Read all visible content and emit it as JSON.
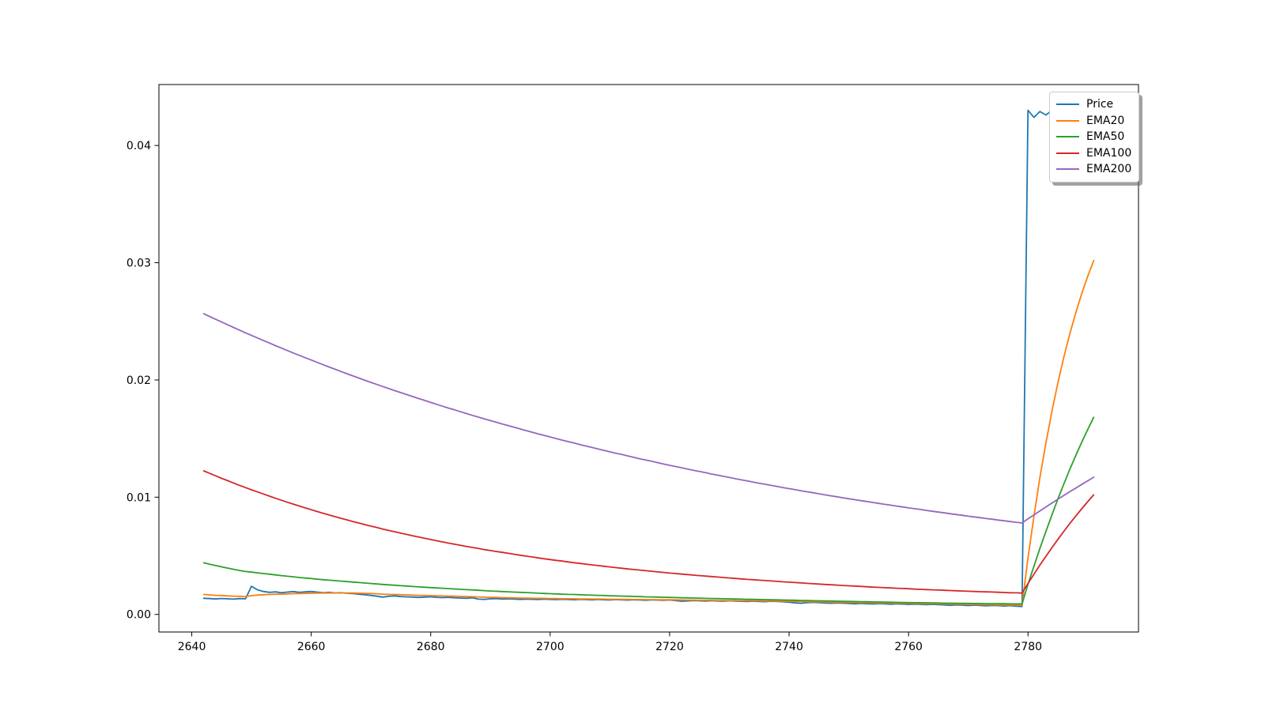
{
  "figure": {
    "background": "#ffffff",
    "plot_border_color": "#000000",
    "tick_color": "#000000"
  },
  "legend": {
    "position": "upper-right",
    "shadow": true,
    "entries": [
      "Price",
      "EMA20",
      "EMA50",
      "EMA100",
      "EMA200"
    ]
  },
  "chart_data": {
    "type": "line",
    "title": "",
    "xlabel": "",
    "ylabel": "",
    "grid": false,
    "legend_position": "upper right",
    "x_start": 2642,
    "x_step": 1,
    "xlim": [
      2634.5,
      2798.5
    ],
    "ylim": [
      -0.0015,
      0.0452
    ],
    "xticks": [
      2640,
      2660,
      2680,
      2700,
      2720,
      2740,
      2760,
      2780
    ],
    "ytick_values": [
      0.0,
      0.01,
      0.02,
      0.03,
      0.04
    ],
    "ytick_labels": [
      "0.00",
      "0.01",
      "0.02",
      "0.03",
      "0.04"
    ],
    "series": [
      {
        "name": "Price",
        "color": "#1f77b4",
        "values": [
          0.00138,
          0.00135,
          0.00132,
          0.00136,
          0.00133,
          0.0013,
          0.00135,
          0.00133,
          0.0024,
          0.0021,
          0.00196,
          0.00188,
          0.00192,
          0.00185,
          0.0019,
          0.00195,
          0.00188,
          0.00192,
          0.00196,
          0.0019,
          0.00185,
          0.00188,
          0.00182,
          0.00185,
          0.0018,
          0.00178,
          0.00172,
          0.00168,
          0.00162,
          0.00155,
          0.00148,
          0.00155,
          0.00158,
          0.00152,
          0.0015,
          0.00148,
          0.00145,
          0.00148,
          0.0015,
          0.00146,
          0.00143,
          0.00146,
          0.00142,
          0.0014,
          0.00138,
          0.00142,
          0.0013,
          0.00128,
          0.00133,
          0.00135,
          0.00131,
          0.00133,
          0.0013,
          0.00128,
          0.00131,
          0.00129,
          0.00127,
          0.0013,
          0.00128,
          0.00126,
          0.00129,
          0.00127,
          0.00125,
          0.00128,
          0.00126,
          0.00124,
          0.00127,
          0.00125,
          0.00123,
          0.00126,
          0.00124,
          0.00122,
          0.00125,
          0.00123,
          0.00121,
          0.00124,
          0.00122,
          0.0012,
          0.00123,
          0.00118,
          0.00112,
          0.00115,
          0.00118,
          0.00116,
          0.00114,
          0.00117,
          0.00115,
          0.00113,
          0.00116,
          0.00114,
          0.00112,
          0.0011,
          0.00113,
          0.00111,
          0.00109,
          0.00112,
          0.0011,
          0.00108,
          0.00105,
          0.00098,
          0.00095,
          0.001,
          0.00103,
          0.001,
          0.00097,
          0.00095,
          0.00098,
          0.00096,
          0.00093,
          0.0009,
          0.00093,
          0.00091,
          0.00089,
          0.00092,
          0.0009,
          0.00087,
          0.0009,
          0.00088,
          0.00085,
          0.00088,
          0.00086,
          0.00083,
          0.00086,
          0.00084,
          0.00081,
          0.00078,
          0.00081,
          0.00079,
          0.00076,
          0.00079,
          0.00077,
          0.00074,
          0.00077,
          0.00075,
          0.00072,
          0.00075,
          0.0007,
          0.00068,
          0.043,
          0.0424,
          0.0429,
          0.0426,
          0.043,
          0.04285,
          0.04295,
          0.0428,
          0.0429,
          0.04285,
          0.0429,
          0.04288
        ]
      },
      {
        "name": "EMA20",
        "color": "#ff7f0e",
        "values": [
          0.0017,
          0.00167,
          0.00163,
          0.00161,
          0.00158,
          0.00156,
          0.00154,
          0.00152,
          0.0016,
          0.00165,
          0.00168,
          0.0017,
          0.00172,
          0.00173,
          0.00175,
          0.00177,
          0.00178,
          0.00179,
          0.00181,
          0.00182,
          0.00182,
          0.00183,
          0.00183,
          0.00183,
          0.00183,
          0.00182,
          0.00181,
          0.0018,
          0.00178,
          0.00176,
          0.00173,
          0.00171,
          0.0017,
          0.00168,
          0.00167,
          0.00165,
          0.00163,
          0.00161,
          0.0016,
          0.00159,
          0.00157,
          0.00156,
          0.00155,
          0.00153,
          0.00152,
          0.00151,
          0.00149,
          0.00147,
          0.00146,
          0.00145,
          0.00143,
          0.00142,
          0.00141,
          0.0014,
          0.00139,
          0.00138,
          0.00137,
          0.00137,
          0.00136,
          0.00135,
          0.00134,
          0.00134,
          0.00133,
          0.00132,
          0.00132,
          0.00131,
          0.00131,
          0.0013,
          0.00129,
          0.00129,
          0.00128,
          0.00128,
          0.00127,
          0.00127,
          0.00126,
          0.00126,
          0.00125,
          0.00125,
          0.00125,
          0.00124,
          0.00123,
          0.00122,
          0.00122,
          0.00121,
          0.0012,
          0.0012,
          0.00119,
          0.00119,
          0.00118,
          0.00118,
          0.00117,
          0.00117,
          0.00116,
          0.00116,
          0.00115,
          0.00115,
          0.00114,
          0.00114,
          0.00113,
          0.00111,
          0.0011,
          0.00109,
          0.00108,
          0.00107,
          0.00106,
          0.00105,
          0.00105,
          0.00104,
          0.00103,
          0.00102,
          0.00101,
          0.001,
          0.00099,
          0.00098,
          0.00098,
          0.00097,
          0.00096,
          0.00095,
          0.00094,
          0.00094,
          0.00093,
          0.00092,
          0.00092,
          0.00091,
          0.0009,
          0.00089,
          0.00088,
          0.00087,
          0.00086,
          0.00086,
          0.00085,
          0.00084,
          0.00083,
          0.00082,
          0.00081,
          0.00081,
          0.0008,
          0.00079,
          0.00481,
          0.00839,
          0.01168,
          0.01462,
          0.01732,
          0.01975,
          0.02196,
          0.02394,
          0.02574,
          0.02737,
          0.02884,
          0.03018
        ]
      },
      {
        "name": "EMA50",
        "color": "#2ca02c",
        "values": [
          0.0044,
          0.00428,
          0.00417,
          0.00406,
          0.00395,
          0.00385,
          0.00375,
          0.00366,
          0.00361,
          0.00355,
          0.00349,
          0.00343,
          0.00337,
          0.00331,
          0.00326,
          0.00321,
          0.00315,
          0.0031,
          0.00306,
          0.00301,
          0.00296,
          0.00292,
          0.00288,
          0.00284,
          0.0028,
          0.00276,
          0.00272,
          0.00268,
          0.00264,
          0.0026,
          0.00256,
          0.00252,
          0.00249,
          0.00245,
          0.00242,
          0.00238,
          0.00235,
          0.00232,
          0.00229,
          0.00226,
          0.00223,
          0.0022,
          0.00217,
          0.00214,
          0.00211,
          0.00209,
          0.00206,
          0.00203,
          0.002,
          0.00198,
          0.00195,
          0.00193,
          0.0019,
          0.00188,
          0.00186,
          0.00184,
          0.00181,
          0.00179,
          0.00177,
          0.00175,
          0.00173,
          0.00171,
          0.0017,
          0.00168,
          0.00166,
          0.00164,
          0.00163,
          0.00161,
          0.00159,
          0.00158,
          0.00156,
          0.00155,
          0.00153,
          0.00152,
          0.0015,
          0.00149,
          0.00148,
          0.00146,
          0.00145,
          0.00144,
          0.00142,
          0.00141,
          0.0014,
          0.00139,
          0.00137,
          0.00136,
          0.00135,
          0.00134,
          0.00133,
          0.00132,
          0.0013,
          0.00129,
          0.00128,
          0.00127,
          0.00126,
          0.00125,
          0.00124,
          0.00123,
          0.00122,
          0.00121,
          0.00119,
          0.00118,
          0.00117,
          0.00116,
          0.00115,
          0.00114,
          0.00113,
          0.00112,
          0.00111,
          0.0011,
          0.00109,
          0.00108,
          0.00107,
          0.00106,
          0.00105,
          0.00104,
          0.00103,
          0.00102,
          0.00101,
          0.001,
          0.001,
          0.00099,
          0.00098,
          0.00097,
          0.00096,
          0.00096,
          0.00095,
          0.00094,
          0.00094,
          0.00093,
          0.00093,
          0.00092,
          0.00092,
          0.00091,
          0.00091,
          0.0009,
          0.0009,
          0.00089,
          0.00257,
          0.00412,
          0.00563,
          0.00708,
          0.00849,
          0.00984,
          0.01113,
          0.01237,
          0.01356,
          0.01469,
          0.01578,
          0.01681
        ]
      },
      {
        "name": "EMA100",
        "color": "#d62728",
        "values": [
          0.01225,
          0.01203,
          0.01182,
          0.01161,
          0.01141,
          0.01121,
          0.01101,
          0.01082,
          0.01063,
          0.01045,
          0.01027,
          0.01009,
          0.00991,
          0.00974,
          0.00957,
          0.00941,
          0.00925,
          0.00909,
          0.00893,
          0.00878,
          0.00863,
          0.00848,
          0.00834,
          0.0082,
          0.00806,
          0.00792,
          0.00779,
          0.00766,
          0.00753,
          0.00741,
          0.00728,
          0.00716,
          0.00705,
          0.00693,
          0.00682,
          0.00671,
          0.0066,
          0.00649,
          0.00639,
          0.00628,
          0.00618,
          0.00608,
          0.00599,
          0.00589,
          0.0058,
          0.00571,
          0.00562,
          0.00553,
          0.00545,
          0.00537,
          0.00529,
          0.00521,
          0.00513,
          0.00505,
          0.00497,
          0.0049,
          0.00482,
          0.00475,
          0.00468,
          0.00461,
          0.00455,
          0.00448,
          0.00441,
          0.00435,
          0.00429,
          0.00423,
          0.00417,
          0.00411,
          0.00405,
          0.00399,
          0.00394,
          0.00388,
          0.00383,
          0.00378,
          0.00373,
          0.00368,
          0.00363,
          0.00358,
          0.00353,
          0.00349,
          0.00344,
          0.0034,
          0.00335,
          0.00331,
          0.00327,
          0.00323,
          0.00319,
          0.00315,
          0.00311,
          0.00307,
          0.00303,
          0.00299,
          0.00296,
          0.00292,
          0.00289,
          0.00285,
          0.00282,
          0.00278,
          0.00275,
          0.00272,
          0.00269,
          0.00265,
          0.00262,
          0.00259,
          0.00256,
          0.00253,
          0.0025,
          0.00247,
          0.00244,
          0.00242,
          0.00239,
          0.00236,
          0.00233,
          0.00231,
          0.00228,
          0.00226,
          0.00223,
          0.00221,
          0.00219,
          0.00216,
          0.00214,
          0.00212,
          0.0021,
          0.00208,
          0.00206,
          0.00204,
          0.00202,
          0.002,
          0.00198,
          0.00196,
          0.00194,
          0.00192,
          0.00191,
          0.00189,
          0.00187,
          0.00185,
          0.00184,
          0.00182,
          0.00264,
          0.00343,
          0.00421,
          0.00495,
          0.00569,
          0.0064,
          0.00709,
          0.00775,
          0.00839,
          0.00901,
          0.00962,
          0.0102
        ]
      },
      {
        "name": "EMA200",
        "color": "#9467bd",
        "values": [
          0.02565,
          0.02541,
          0.02517,
          0.02494,
          0.02471,
          0.02448,
          0.02425,
          0.02402,
          0.0238,
          0.02358,
          0.02336,
          0.02315,
          0.02293,
          0.02272,
          0.02251,
          0.0223,
          0.0221,
          0.0219,
          0.0217,
          0.0215,
          0.0213,
          0.0211,
          0.02091,
          0.02072,
          0.02053,
          0.02034,
          0.02016,
          0.01997,
          0.01979,
          0.01961,
          0.01944,
          0.01926,
          0.01909,
          0.01892,
          0.01875,
          0.01858,
          0.01841,
          0.01825,
          0.01808,
          0.01792,
          0.01776,
          0.0176,
          0.01745,
          0.01729,
          0.01713,
          0.01698,
          0.01683,
          0.01668,
          0.01653,
          0.01639,
          0.01624,
          0.0161,
          0.01596,
          0.01582,
          0.01568,
          0.01554,
          0.0154,
          0.01527,
          0.01514,
          0.015,
          0.01487,
          0.01474,
          0.01462,
          0.01449,
          0.01436,
          0.01424,
          0.01412,
          0.01399,
          0.01387,
          0.01375,
          0.01364,
          0.01352,
          0.0134,
          0.01328,
          0.01317,
          0.01306,
          0.01295,
          0.01283,
          0.01272,
          0.01262,
          0.01251,
          0.0124,
          0.01229,
          0.01219,
          0.01209,
          0.01198,
          0.01188,
          0.01178,
          0.01168,
          0.01158,
          0.01148,
          0.01139,
          0.01129,
          0.01119,
          0.0111,
          0.01101,
          0.01091,
          0.01082,
          0.01073,
          0.01064,
          0.01055,
          0.01046,
          0.01038,
          0.01029,
          0.0102,
          0.01012,
          0.01004,
          0.00995,
          0.00987,
          0.00979,
          0.00971,
          0.00963,
          0.00955,
          0.00947,
          0.00939,
          0.00932,
          0.00924,
          0.00917,
          0.00909,
          0.00902,
          0.00895,
          0.00887,
          0.0088,
          0.00873,
          0.00866,
          0.00859,
          0.00852,
          0.00845,
          0.00838,
          0.00832,
          0.00825,
          0.00818,
          0.00812,
          0.00805,
          0.00799,
          0.00792,
          0.00786,
          0.0078,
          0.00815,
          0.00849,
          0.00883,
          0.00917,
          0.0095,
          0.00983,
          0.01015,
          0.01047,
          0.01078,
          0.01109,
          0.0114,
          0.0117
        ]
      }
    ]
  }
}
